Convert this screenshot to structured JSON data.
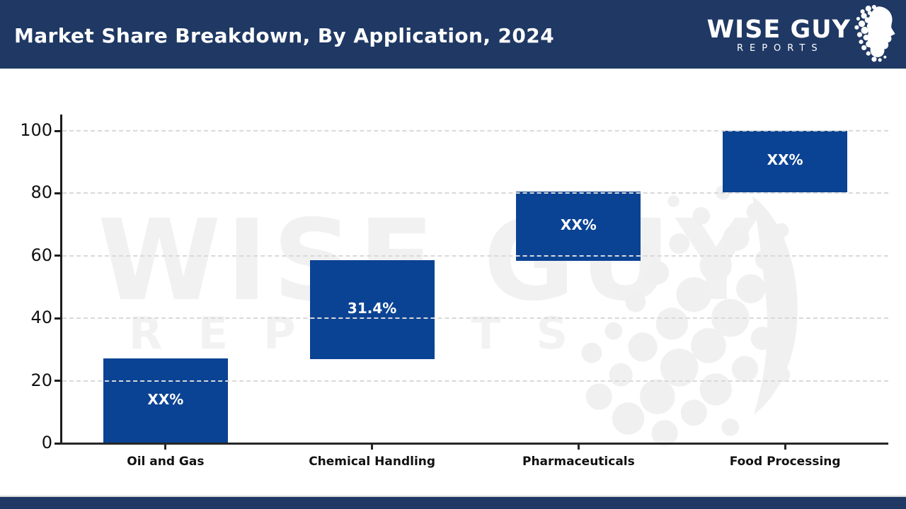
{
  "header": {
    "title": "Market Share Breakdown, By Application, 2024",
    "logo": {
      "line1": "WISE GUY",
      "line2": "REPORTS"
    }
  },
  "watermark": {
    "line1": "WISE GUY",
    "line2": "REPORTS"
  },
  "colors": {
    "header_bg": "#1f3864",
    "bar": "#0b4394",
    "grid": "#d9d9d9",
    "axis": "#262626",
    "bar_label": "#ffffff",
    "tick_label": "#111111",
    "watermark": "#f1f1f1"
  },
  "chart_data": {
    "type": "bar",
    "subtype": "waterfall",
    "title": "Market Share Breakdown, By Application, 2024",
    "xlabel": "",
    "ylabel": "",
    "categories": [
      "Oil and Gas",
      "Chemical Handling",
      "Pharmaceuticals",
      "Food Processing"
    ],
    "segments": [
      {
        "category": "Oil and Gas",
        "start": 0,
        "end": 27.1,
        "label": "XX%"
      },
      {
        "category": "Chemical Handling",
        "start": 27.1,
        "end": 58.5,
        "label": "31.4%"
      },
      {
        "category": "Pharmaceuticals",
        "start": 58.5,
        "end": 80.6,
        "label": "XX%"
      },
      {
        "category": "Food Processing",
        "start": 80.6,
        "end": 100,
        "label": "XX%"
      }
    ],
    "yticks": [
      0,
      20,
      40,
      60,
      80,
      100
    ],
    "ylim": [
      0,
      105
    ],
    "grid": "horizontal dashed, drawn above bars",
    "legend": "none"
  }
}
